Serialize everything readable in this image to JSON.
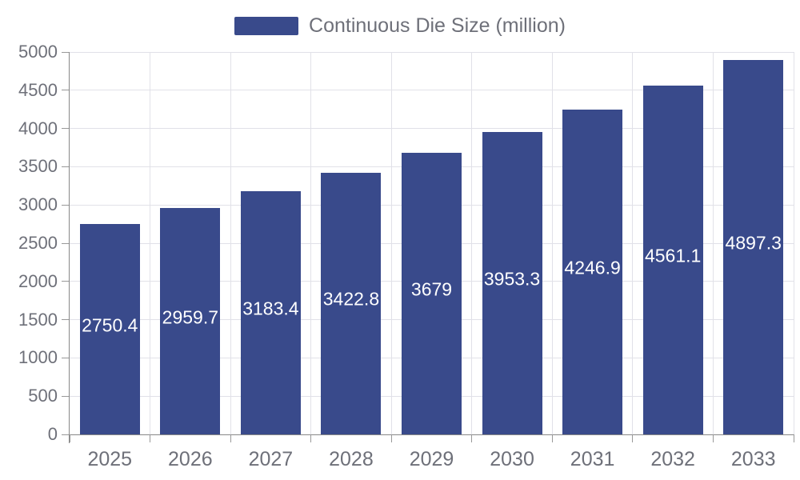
{
  "legend": {
    "label": "Continuous Die Size (million)"
  },
  "chart_data": {
    "type": "bar",
    "title": "Continuous Die Size (million)",
    "series_name": "Continuous Die Size (million)",
    "categories": [
      "2025",
      "2026",
      "2027",
      "2028",
      "2029",
      "2030",
      "2031",
      "2032",
      "2033"
    ],
    "values": [
      2750.4,
      2959.7,
      3183.4,
      3422.8,
      3679,
      3953.3,
      4246.9,
      4561.1,
      4897.3
    ],
    "value_labels": [
      "2750.4",
      "2959.7",
      "3183.4",
      "3422.8",
      "3679",
      "3953.3",
      "4246.9",
      "4561.1",
      "4897.3"
    ],
    "xlabel": "",
    "ylabel": "",
    "ylim": [
      0,
      5000
    ],
    "ytick_step": 500,
    "ytick_labels": [
      "0",
      "500",
      "1000",
      "1500",
      "2000",
      "2500",
      "3000",
      "3500",
      "4000",
      "4500",
      "5000"
    ],
    "grid": true,
    "legend_position": "top",
    "colors": {
      "bar": "#394a8b",
      "grid_line": "#e1e1e8",
      "axis_line": "#888888",
      "tick_line": "#999999",
      "axis_label": "#6e7079",
      "legend_text": "#6e7079",
      "value_label": "#ffffff",
      "background": "#ffffff"
    }
  }
}
